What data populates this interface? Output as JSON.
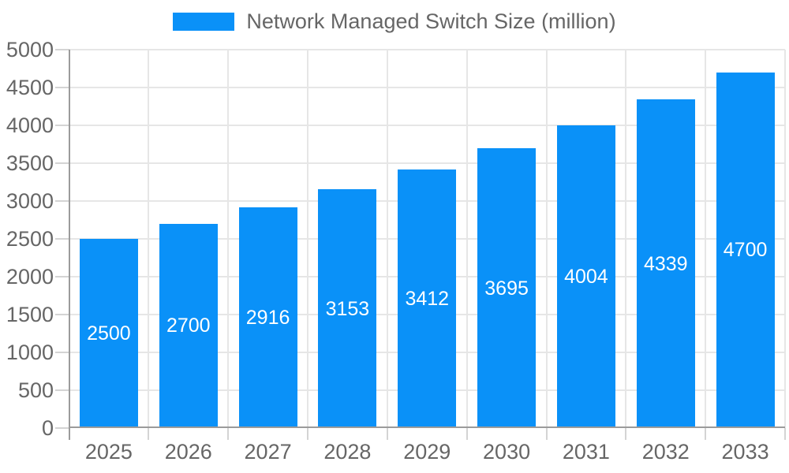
{
  "chart_data": {
    "type": "bar",
    "title": "",
    "legend": {
      "label": "Network Managed Switch Size (million)",
      "position": "top"
    },
    "categories": [
      "2025",
      "2026",
      "2027",
      "2028",
      "2029",
      "2030",
      "2031",
      "2032",
      "2033"
    ],
    "series": [
      {
        "name": "Network Managed Switch Size (million)",
        "values": [
          2500,
          2700,
          2916,
          3153,
          3412,
          3695,
          4004,
          4339,
          4700
        ]
      }
    ],
    "xlabel": "",
    "ylabel": "",
    "ylim": [
      0,
      5000
    ],
    "ytick_step": 500,
    "grid": true,
    "bar_value_labels": "inside-center"
  },
  "colors": {
    "bar": "#0a91f8",
    "axis": "#9b9b9b",
    "grid": "#e6e6e6",
    "tick": "#d4d4d4",
    "axis_text": "#666666",
    "bar_label_text": "#ffffff",
    "background": "#ffffff"
  }
}
